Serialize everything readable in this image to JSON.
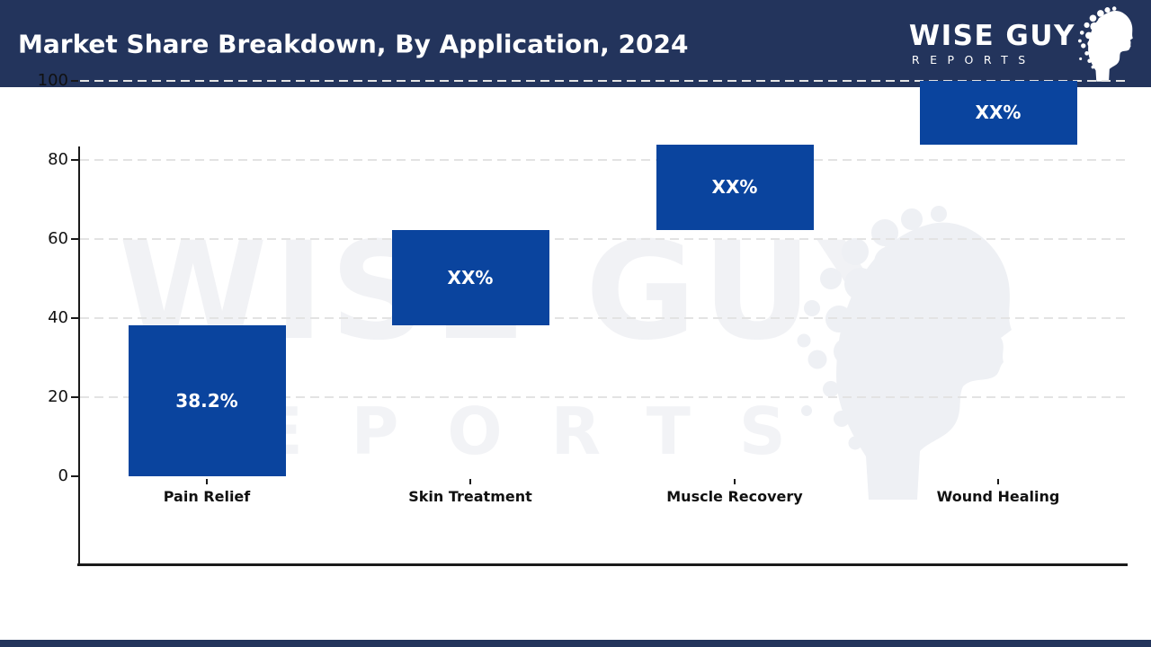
{
  "header": {
    "title": "Market Share Breakdown, By Application, 2024",
    "logo": {
      "line1": "WISE GUY",
      "line2": "REPORTS"
    }
  },
  "watermark": {
    "line1": "WISE GUY",
    "line2": "REPORTS"
  },
  "colors": {
    "header_bg": "#23345c",
    "bar": "#0a449e",
    "grid": "#e3e3e3",
    "axis": "#1a1a1a",
    "watermark": "#f1f2f5"
  },
  "chart_data": {
    "type": "bar",
    "variant": "waterfall",
    "title": "Market Share Breakdown, By Application, 2024",
    "categories": [
      "Pain Relief",
      "Skin Treatment",
      "Muscle Recovery",
      "Wound Healing"
    ],
    "segments": [
      {
        "category": "Pain Relief",
        "start": 0,
        "end": 38.2,
        "label": "38.2%"
      },
      {
        "category": "Skin Treatment",
        "start": 38.2,
        "end": 62.3,
        "label": "XX%"
      },
      {
        "category": "Muscle Recovery",
        "start": 62.3,
        "end": 83.9,
        "label": "XX%"
      },
      {
        "category": "Wound Healing",
        "start": 83.9,
        "end": 100,
        "label": "XX%"
      }
    ],
    "y_ticks": [
      0,
      20,
      40,
      60,
      80,
      100
    ],
    "ylim": [
      0,
      105.5
    ],
    "xlabel": "",
    "ylabel": "",
    "grid": "horizontal-dashed",
    "legend": "none"
  }
}
